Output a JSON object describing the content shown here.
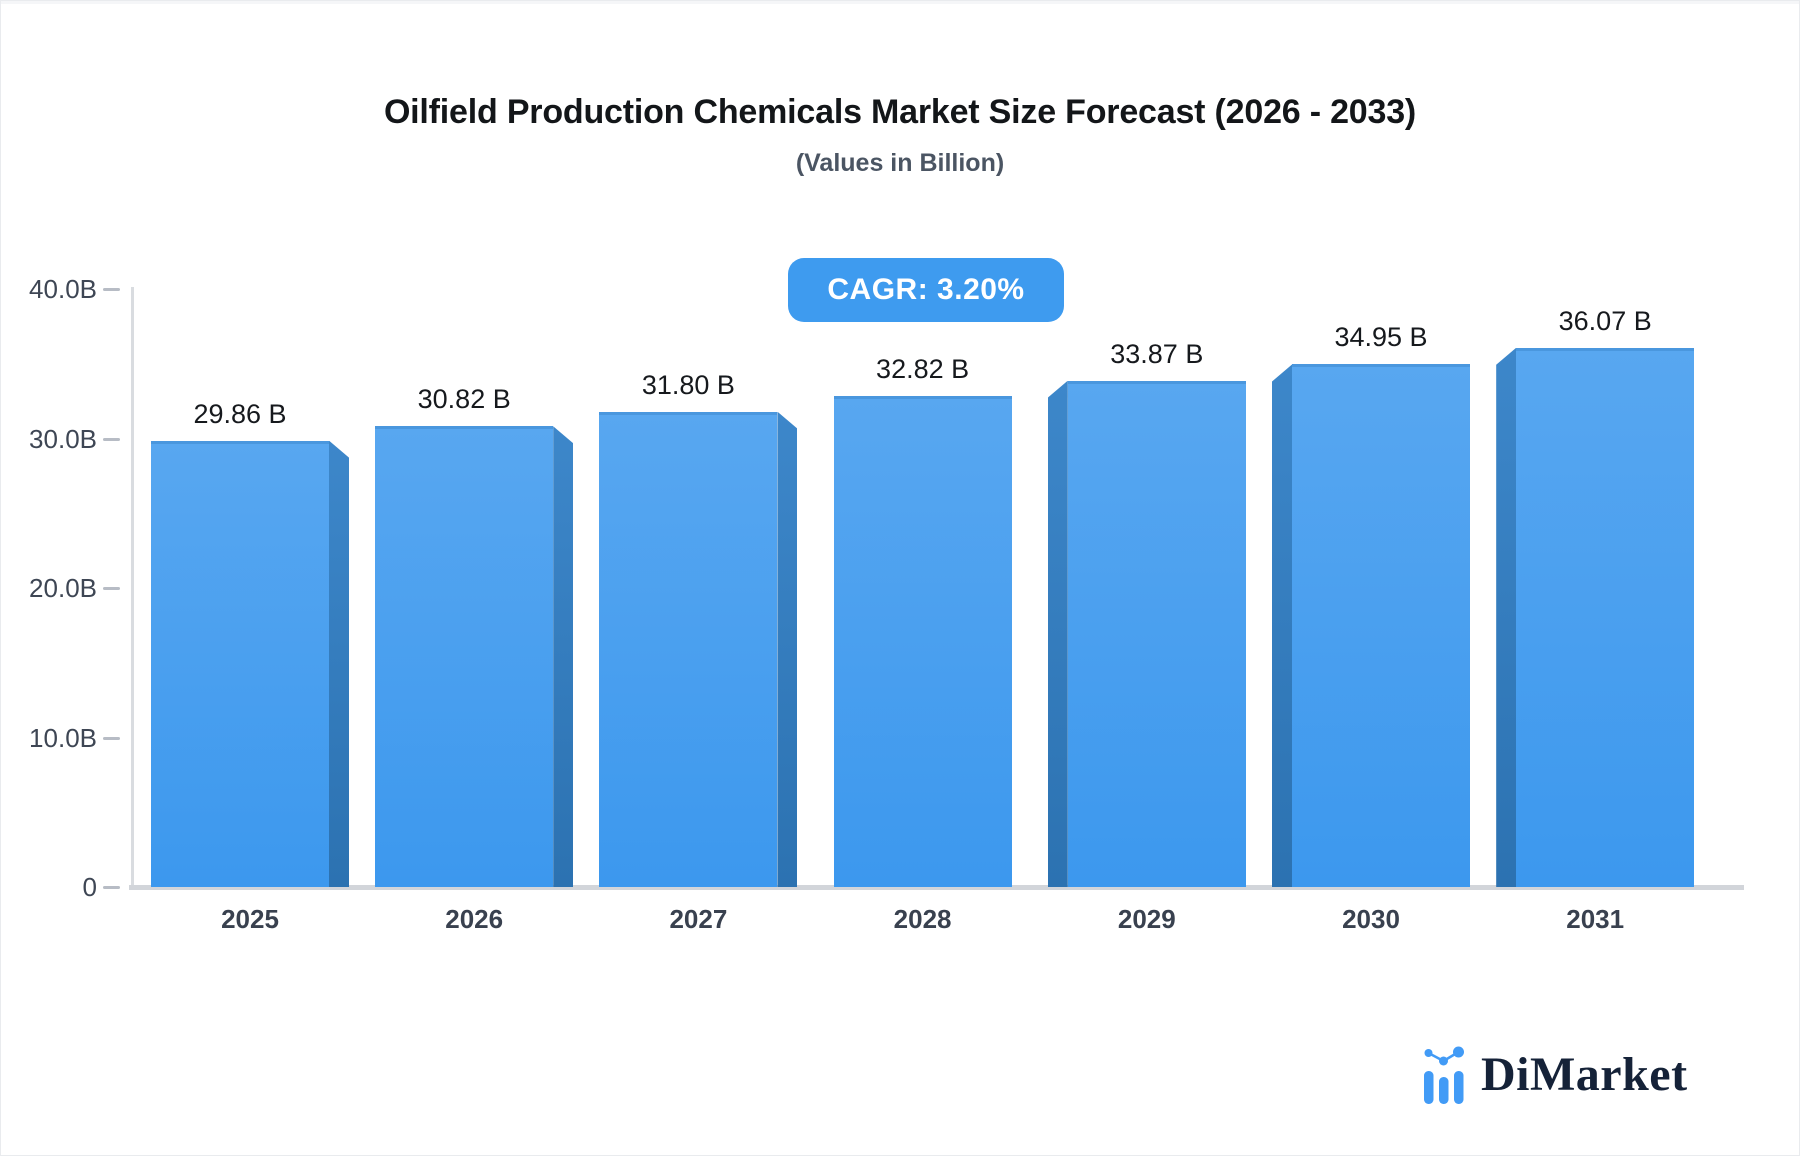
{
  "header": {
    "title": "Oilfield Production Chemicals Market Size Forecast (2026 - 2033)",
    "subtitle": "(Values in Billion)"
  },
  "chart_data": {
    "type": "bar",
    "title": "Oilfield Production Chemicals Market Size Forecast (2026 - 2033)",
    "subtitle": "(Values in Billion)",
    "categories": [
      "2025",
      "2026",
      "2027",
      "2028",
      "2029",
      "2030",
      "2031"
    ],
    "values": [
      29.86,
      30.82,
      31.8,
      32.82,
      33.87,
      34.95,
      36.07
    ],
    "value_labels": [
      "29.86 B",
      "30.82 B",
      "31.80 B",
      "32.82 B",
      "33.87 B",
      "34.95 B",
      "36.07 B"
    ],
    "unit": "Billion",
    "ylim": [
      0,
      40
    ],
    "yticks": [
      {
        "value": 40,
        "label": "40.0B"
      },
      {
        "value": 30,
        "label": "30.0B"
      },
      {
        "value": 20,
        "label": "20.0B"
      },
      {
        "value": 10,
        "label": "10.0B"
      },
      {
        "value": 0,
        "label": "0"
      }
    ],
    "grid": "off",
    "legend": "none",
    "annotations": {
      "cagr_label": "CAGR: 3.20%"
    },
    "colors": {
      "bar_front_top": "#58a7f0",
      "bar_front_bottom": "#3c98ee",
      "bar_side": "#2c74b4",
      "badge_background": "#3e9bef",
      "badge_text": "#ffffff",
      "axis_line": "#d9dce0",
      "label_text": "#16191d"
    }
  },
  "footer": {
    "brand_name": "DiMarket",
    "logo_icon": "bar-chart-with-trend-dots"
  }
}
